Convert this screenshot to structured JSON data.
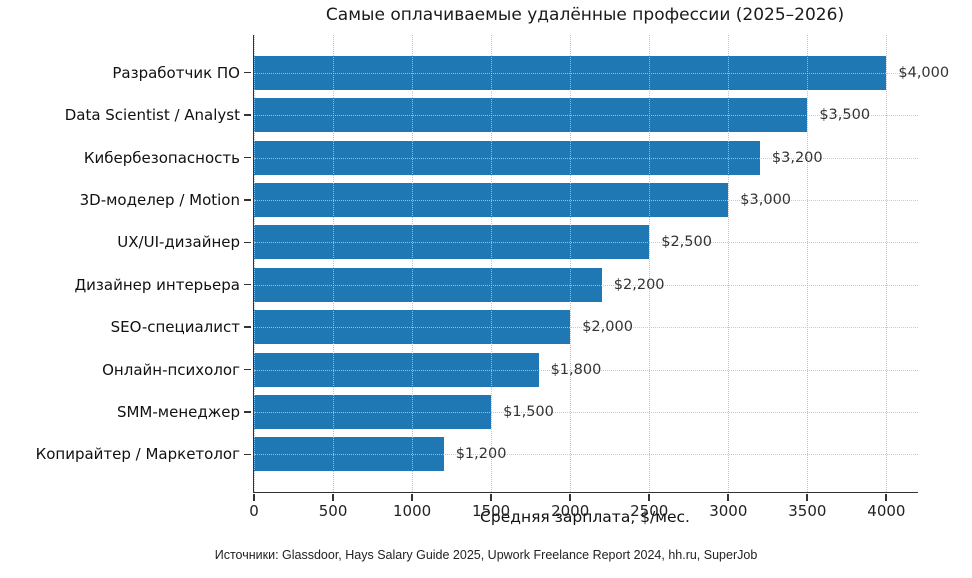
{
  "chart_data": {
    "type": "bar",
    "orientation": "horizontal",
    "title": "Самые оплачиваемые удалённые профессии (2025–2026)",
    "xlabel": "Средняя зарплата, $/мес.",
    "categories": [
      "Разработчик ПО",
      "Data Scientist / Analyst",
      "Кибербезопасность",
      "3D-моделер / Motion",
      "UX/UI-дизайнер",
      "Дизайнер интерьера",
      "SEO-специалист",
      "Онлайн-психолог",
      "SMM-менеджер",
      "Копирайтер / Маркетолог"
    ],
    "values": [
      4000,
      3500,
      3200,
      3000,
      2500,
      2200,
      2000,
      1800,
      1500,
      1200
    ],
    "value_labels": [
      "$4,000",
      "$3,500",
      "$3,200",
      "$3,000",
      "$2,500",
      "$2,200",
      "$2,000",
      "$1,800",
      "$1,500",
      "$1,200"
    ],
    "xticks": [
      0,
      500,
      1000,
      1500,
      2000,
      2500,
      3000,
      3500,
      4000
    ],
    "xtick_labels": [
      "0",
      "500",
      "1000",
      "1500",
      "2000",
      "2500",
      "3000",
      "3500",
      "4000"
    ],
    "xlim": [
      0,
      4200
    ],
    "grid": true,
    "grid_style": "dotted",
    "legend": false,
    "bar_color": "#1f77b4",
    "source_note": "Источники: Glassdoor, Hays Salary Guide 2025, Upwork Freelance Report 2024, hh.ru, SuperJob"
  }
}
